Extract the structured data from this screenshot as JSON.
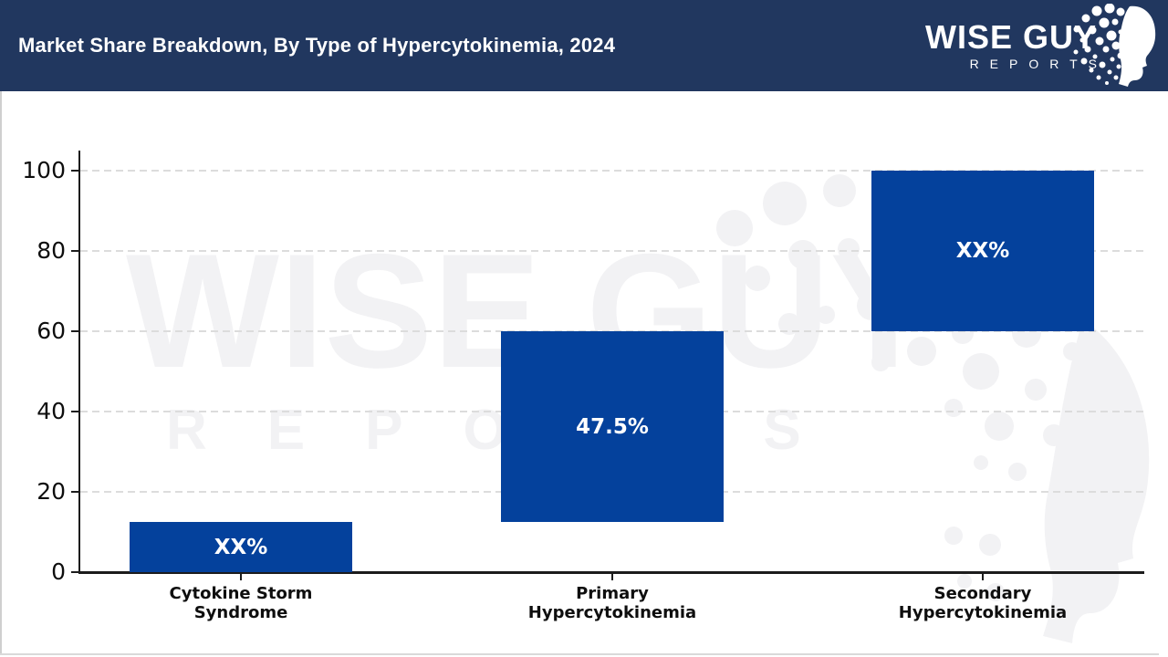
{
  "header": {
    "title": "Market Share Breakdown, By Type of Hypercytokinemia, 2024",
    "logo": {
      "line1": "WISE GUY",
      "line2": "REPORTS"
    }
  },
  "watermark": {
    "line1": "WISE GUY",
    "line2": "REPORTS"
  },
  "chart_data": {
    "type": "bar",
    "subtype": "waterfall",
    "title": "Market Share Breakdown, By Type of Hypercytokinemia, 2024",
    "categories": [
      "Cytokine Storm\nSyndrome",
      "Primary\nHypercytokinemia",
      "Secondary\nHypercytokinemia"
    ],
    "segments": [
      {
        "category": "Cytokine Storm Syndrome",
        "start": 0,
        "end": 12.5,
        "value": 12.5,
        "label": "XX%"
      },
      {
        "category": "Primary Hypercytokinemia",
        "start": 12.5,
        "end": 60,
        "value": 47.5,
        "label": "47.5%"
      },
      {
        "category": "Secondary Hypercytokinemia",
        "start": 60,
        "end": 100,
        "value": 40,
        "label": "XX%"
      }
    ],
    "xlabel": "",
    "ylabel": "",
    "ylim": [
      0,
      105
    ],
    "yticks": [
      0,
      20,
      40,
      60,
      80,
      100
    ],
    "grid": "horizontal-dashed",
    "legend": "none",
    "bar_color": "#04419c",
    "label_color": "#ffffff"
  },
  "colors": {
    "header_bg": "#21375f",
    "bar": "#04419c",
    "grid": "#dcdcdc",
    "axis": "#1c1c1c",
    "watermark": "#f2f2f4"
  }
}
